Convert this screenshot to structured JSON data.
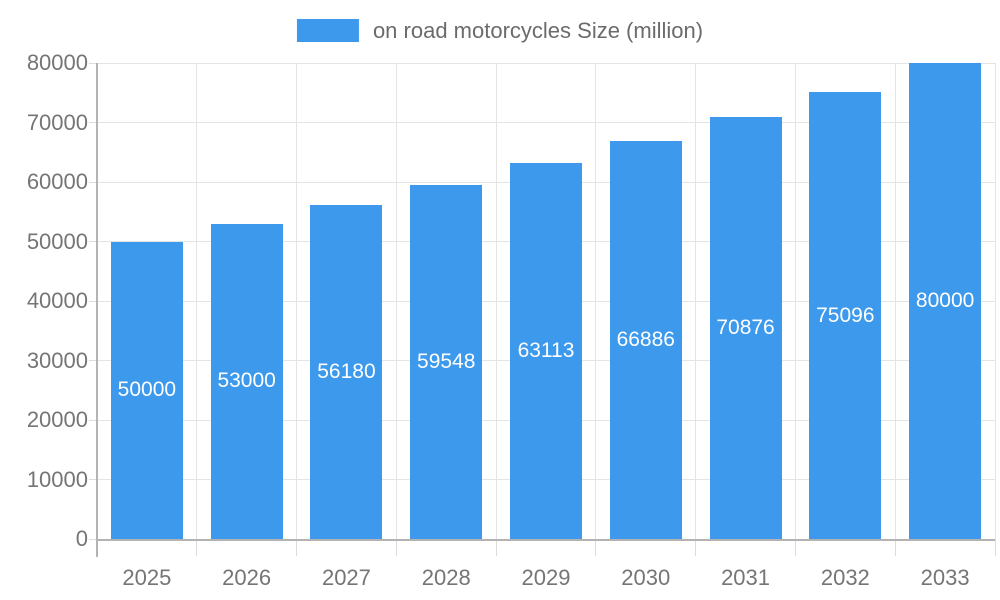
{
  "chart_data": {
    "type": "bar",
    "title": "",
    "series_label": "on road motorcycles Size (million)",
    "categories": [
      "2025",
      "2026",
      "2027",
      "2028",
      "2029",
      "2030",
      "2031",
      "2032",
      "2033"
    ],
    "values": [
      50000,
      53000,
      56180,
      59548,
      63113,
      66886,
      70876,
      75096,
      80000
    ],
    "bar_value_labels": [
      "50000",
      "53000",
      "56180",
      "59548",
      "63113",
      "66886",
      "70876",
      "75096",
      "80000"
    ],
    "xlabel": "",
    "ylabel": "",
    "ylim": [
      0,
      80000
    ],
    "ytick_step": 10000,
    "ytick_labels": [
      "0",
      "10000",
      "20000",
      "30000",
      "40000",
      "50000",
      "60000",
      "70000",
      "80000"
    ],
    "grid": true,
    "legend_position": "top-center",
    "bar_labels_position": "inside-center"
  },
  "colors": {
    "bar": "#3C99EC",
    "bar_label": "#FFFFFF",
    "grid": "#E4E4E4",
    "axis": "#B3B3B3",
    "tick_mark": "#DCDCDC",
    "axis_text": "#757575",
    "legend_text": "#6B6B6B"
  }
}
